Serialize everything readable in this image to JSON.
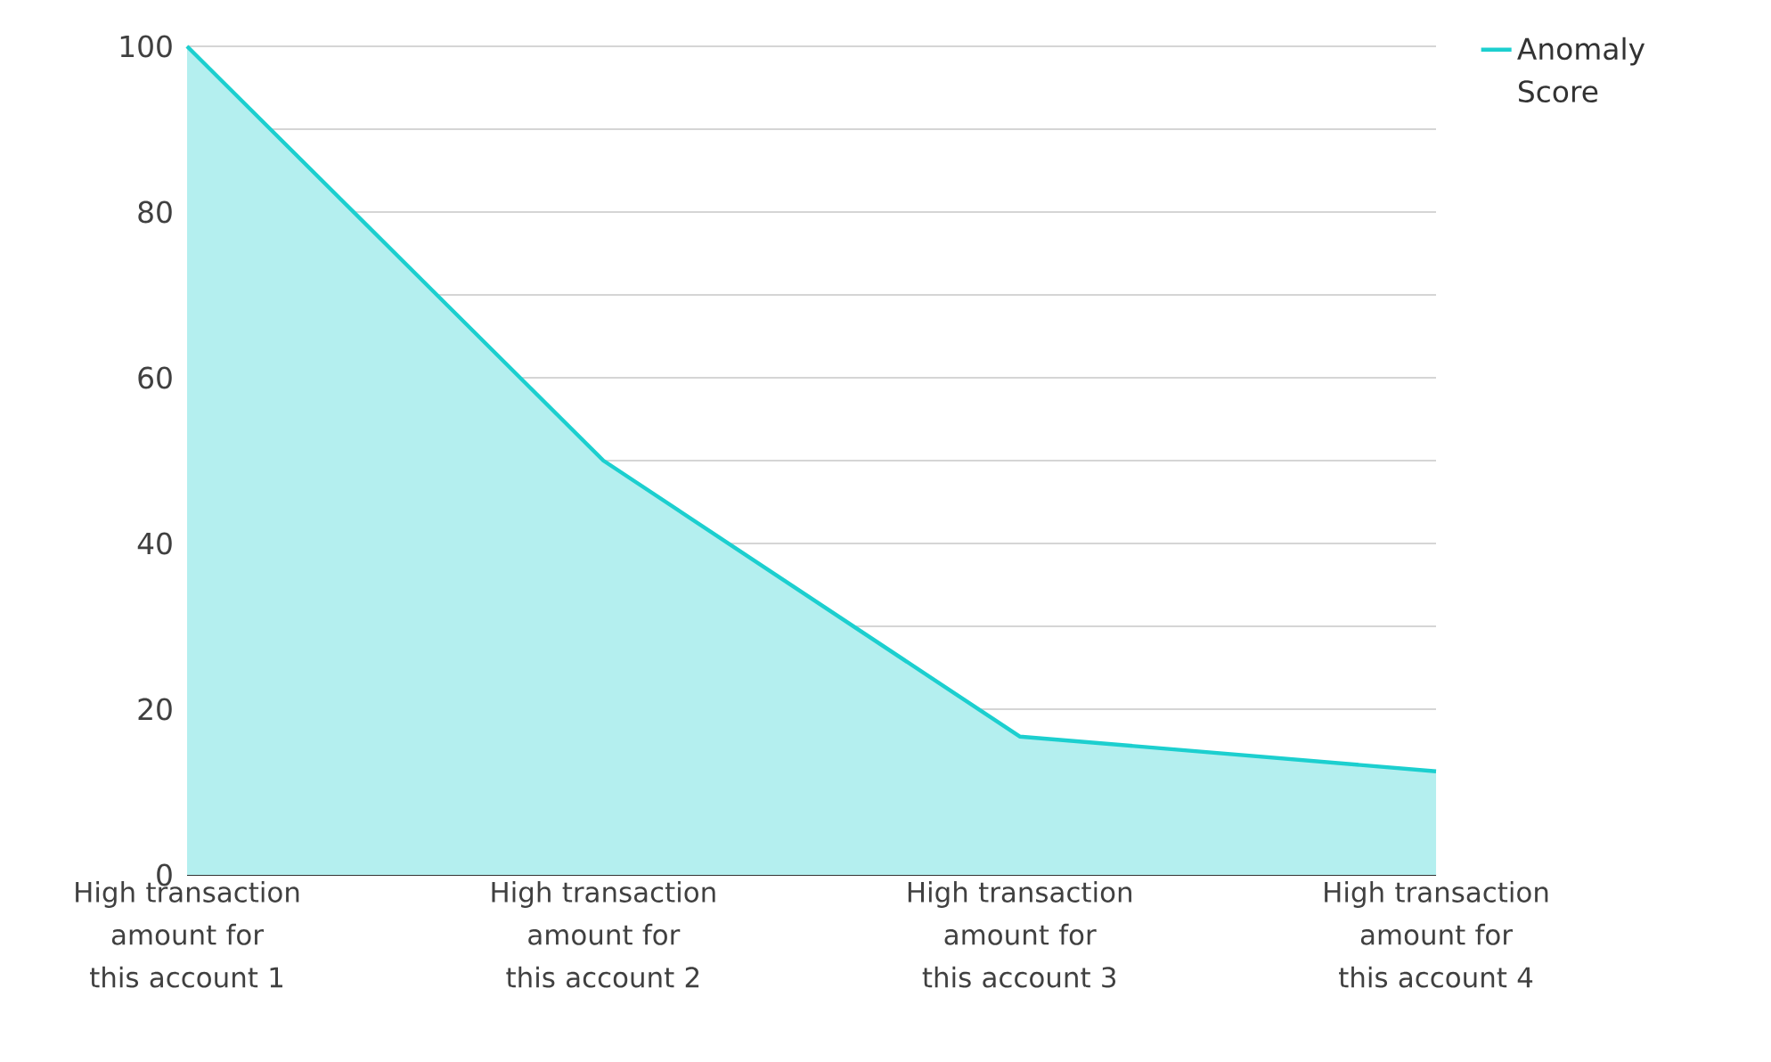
{
  "chart_data": {
    "type": "area",
    "categories": [
      "High transaction amount for this account 1",
      "High transaction amount for this account 2",
      "High transaction amount for this account 3",
      "High transaction amount for this account 4"
    ],
    "series": [
      {
        "name": "Anomaly Score",
        "color": "#1ccfcf",
        "values": [
          100,
          50,
          16.7,
          12.5
        ]
      }
    ],
    "ylim": [
      0,
      100
    ],
    "yticks": [
      0,
      {
        "value": 10,
        "label": null
      },
      20,
      {
        "value": 30,
        "label": null
      },
      40,
      {
        "value": 50,
        "label": null
      },
      60,
      {
        "value": 70,
        "label": null
      },
      80,
      {
        "value": 90,
        "label": null
      },
      100
    ],
    "grid": "y",
    "legend": "top right"
  }
}
